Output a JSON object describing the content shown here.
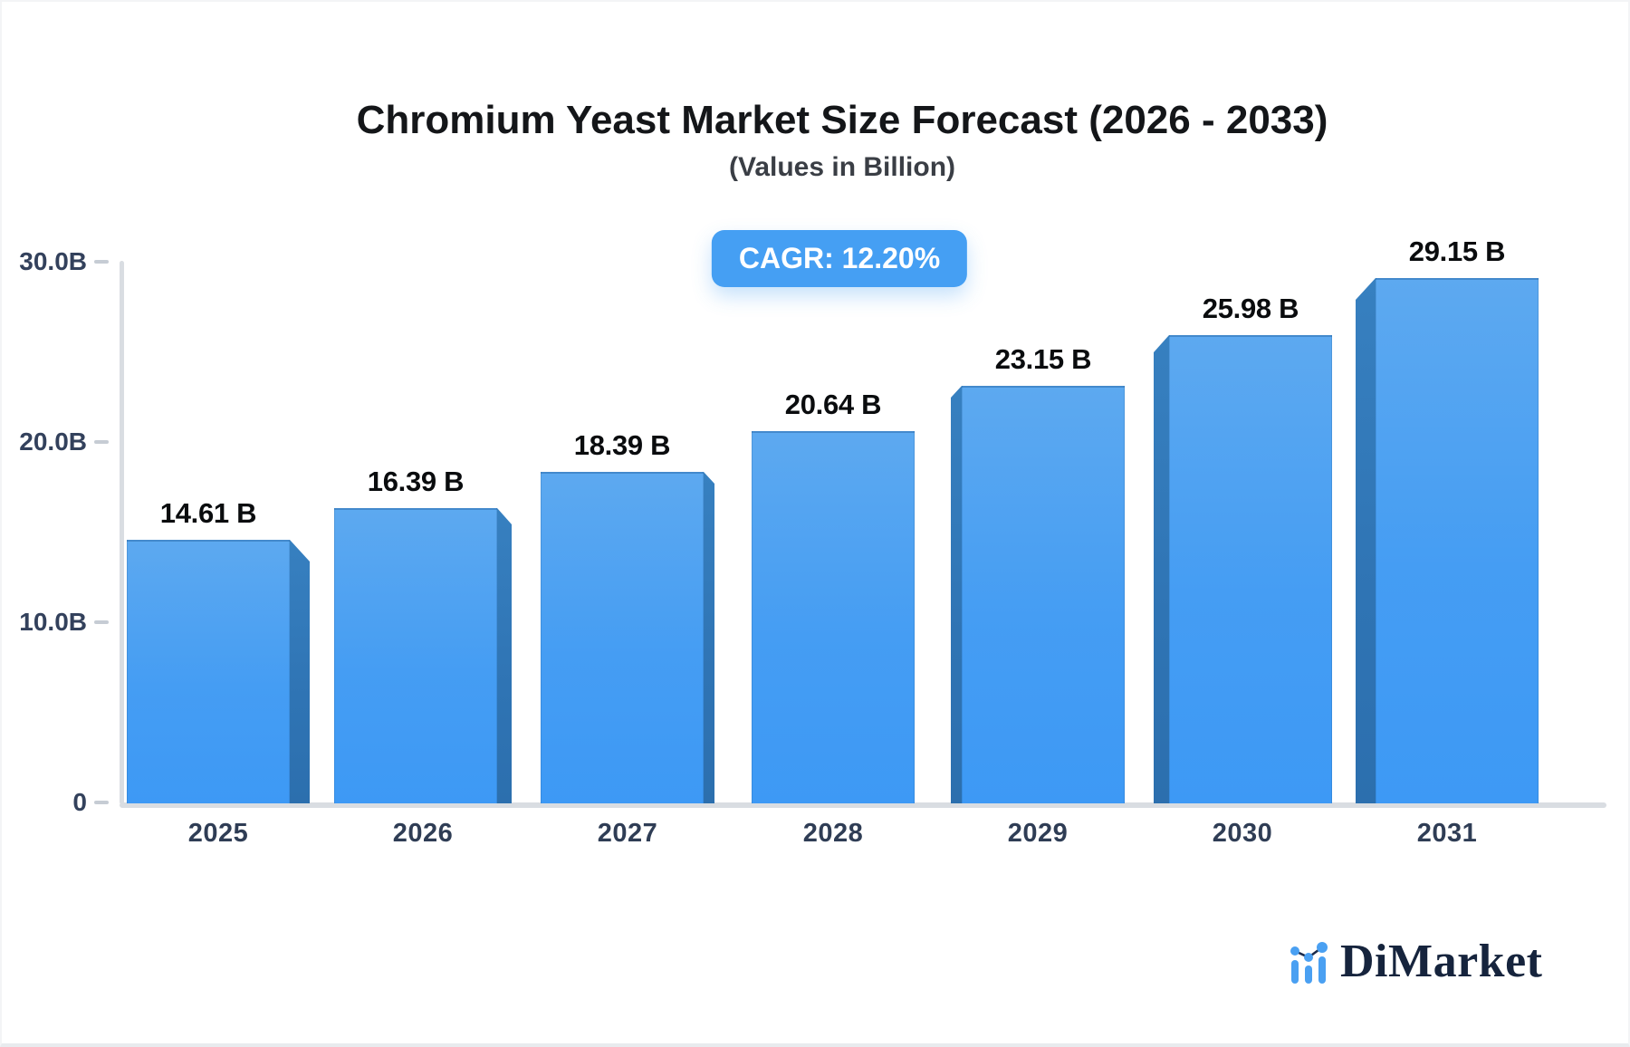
{
  "chart_data": {
    "type": "bar",
    "title": "Chromium Yeast Market Size Forecast (2026 - 2033)",
    "subtitle": "(Values in Billion)",
    "cagr_label": "CAGR: 12.20%",
    "categories": [
      "2025",
      "2026",
      "2027",
      "2028",
      "2029",
      "2030",
      "2031"
    ],
    "values": [
      14.61,
      16.39,
      18.39,
      20.64,
      23.15,
      25.98,
      29.15
    ],
    "bar_labels": [
      "14.61 B",
      "16.39 B",
      "18.39 B",
      "20.64 B",
      "23.15 B",
      "25.98 B",
      "29.15 B"
    ],
    "y_ticks": [
      {
        "label": "30.0B",
        "value": 30
      },
      {
        "label": "20.0B",
        "value": 20
      },
      {
        "label": "10.0B",
        "value": 10
      },
      {
        "label": "0",
        "value": 0
      }
    ],
    "ylim": [
      0,
      30
    ],
    "xlabel": "",
    "ylabel": "",
    "grid": false,
    "legend_position": "none",
    "colors": {
      "bar_face_top": "#5da9f0",
      "bar_face_bottom": "#3d99f5",
      "bar_side": "#2f74b4",
      "badge_background": "#459ff3",
      "badge_text": "#ffffff",
      "axis_line": "#d9dde2",
      "tick_text": "#33415c",
      "value_label_text": "#0a0c0e",
      "title_text": "#141619",
      "logo_blue": "#4aa0f2",
      "logo_navy": "#16243d"
    }
  },
  "footer": {
    "brand": "DiMarket"
  }
}
